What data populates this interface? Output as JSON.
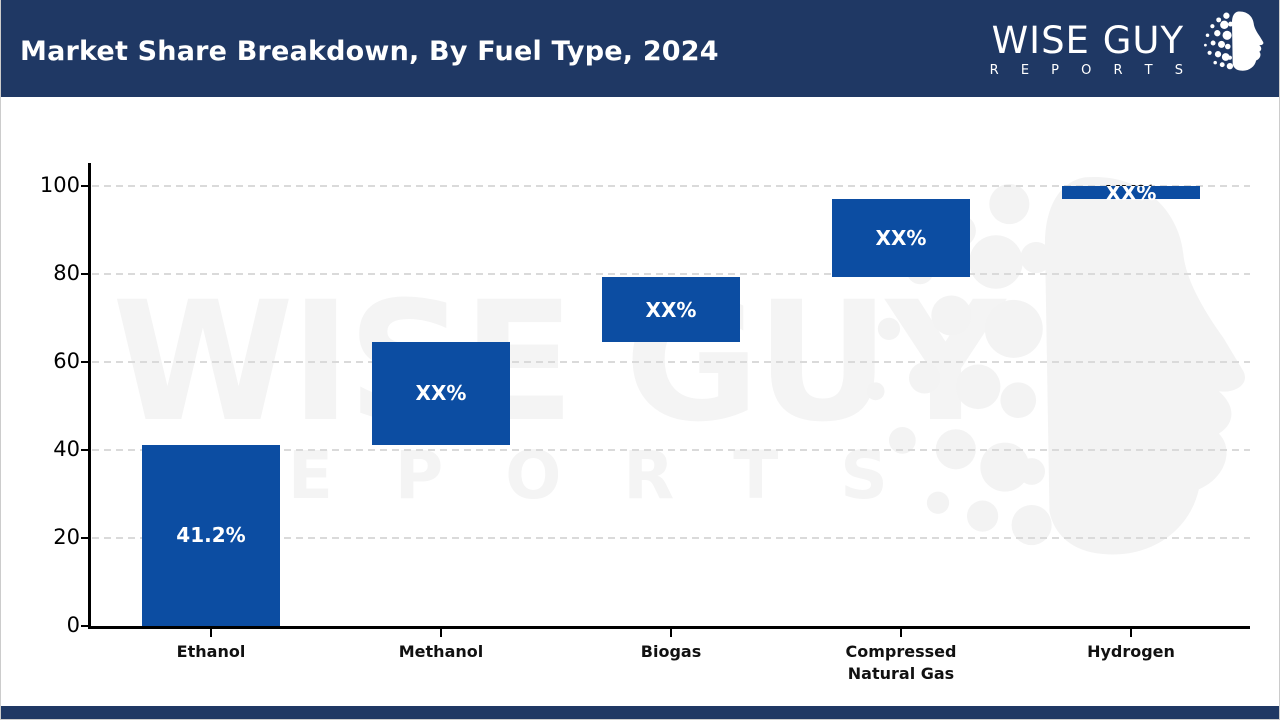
{
  "header": {
    "title": "Market Share Breakdown, By Fuel Type, 2024",
    "logo": {
      "line1": "WISE GUY",
      "line2": "R E P O R T S"
    }
  },
  "watermark": {
    "line1": "WISE GUY",
    "line2": "REPORTS"
  },
  "colors": {
    "header_bg": "#1f3864",
    "footer_bg": "#1f3864",
    "bar": "#0c4da2",
    "bar_label_inside": "#ffffff",
    "bar_label_outside": "#111111",
    "gridline": "#dadada",
    "axis": "#000000",
    "watermark": "#f4f4f4"
  },
  "chart_data": {
    "type": "bar",
    "subtype": "waterfall",
    "title": "Market Share Breakdown, By Fuel Type, 2024",
    "xlabel": "",
    "ylabel": "",
    "categories": [
      "Ethanol",
      "Methanol",
      "Biogas",
      "Compressed Natural Gas",
      "Hydrogen"
    ],
    "segments": [
      {
        "label": "Ethanol",
        "start": 0,
        "end": 41.2,
        "value_label": "41.2%"
      },
      {
        "label": "Methanol",
        "start": 41.2,
        "end": 64.5,
        "value_label": "XX%"
      },
      {
        "label": "Biogas",
        "start": 64.5,
        "end": 79.3,
        "value_label": "XX%"
      },
      {
        "label": "Compressed Natural Gas",
        "start": 79.3,
        "end": 97.0,
        "value_label": "XX%"
      },
      {
        "label": "Hydrogen",
        "start": 97.0,
        "end": 100.0,
        "value_label": "XX%"
      }
    ],
    "yticks": [
      0,
      20,
      40,
      60,
      80,
      100
    ],
    "ylim": [
      0,
      105
    ],
    "grid": "horizontal-dashed",
    "legend": "none"
  }
}
